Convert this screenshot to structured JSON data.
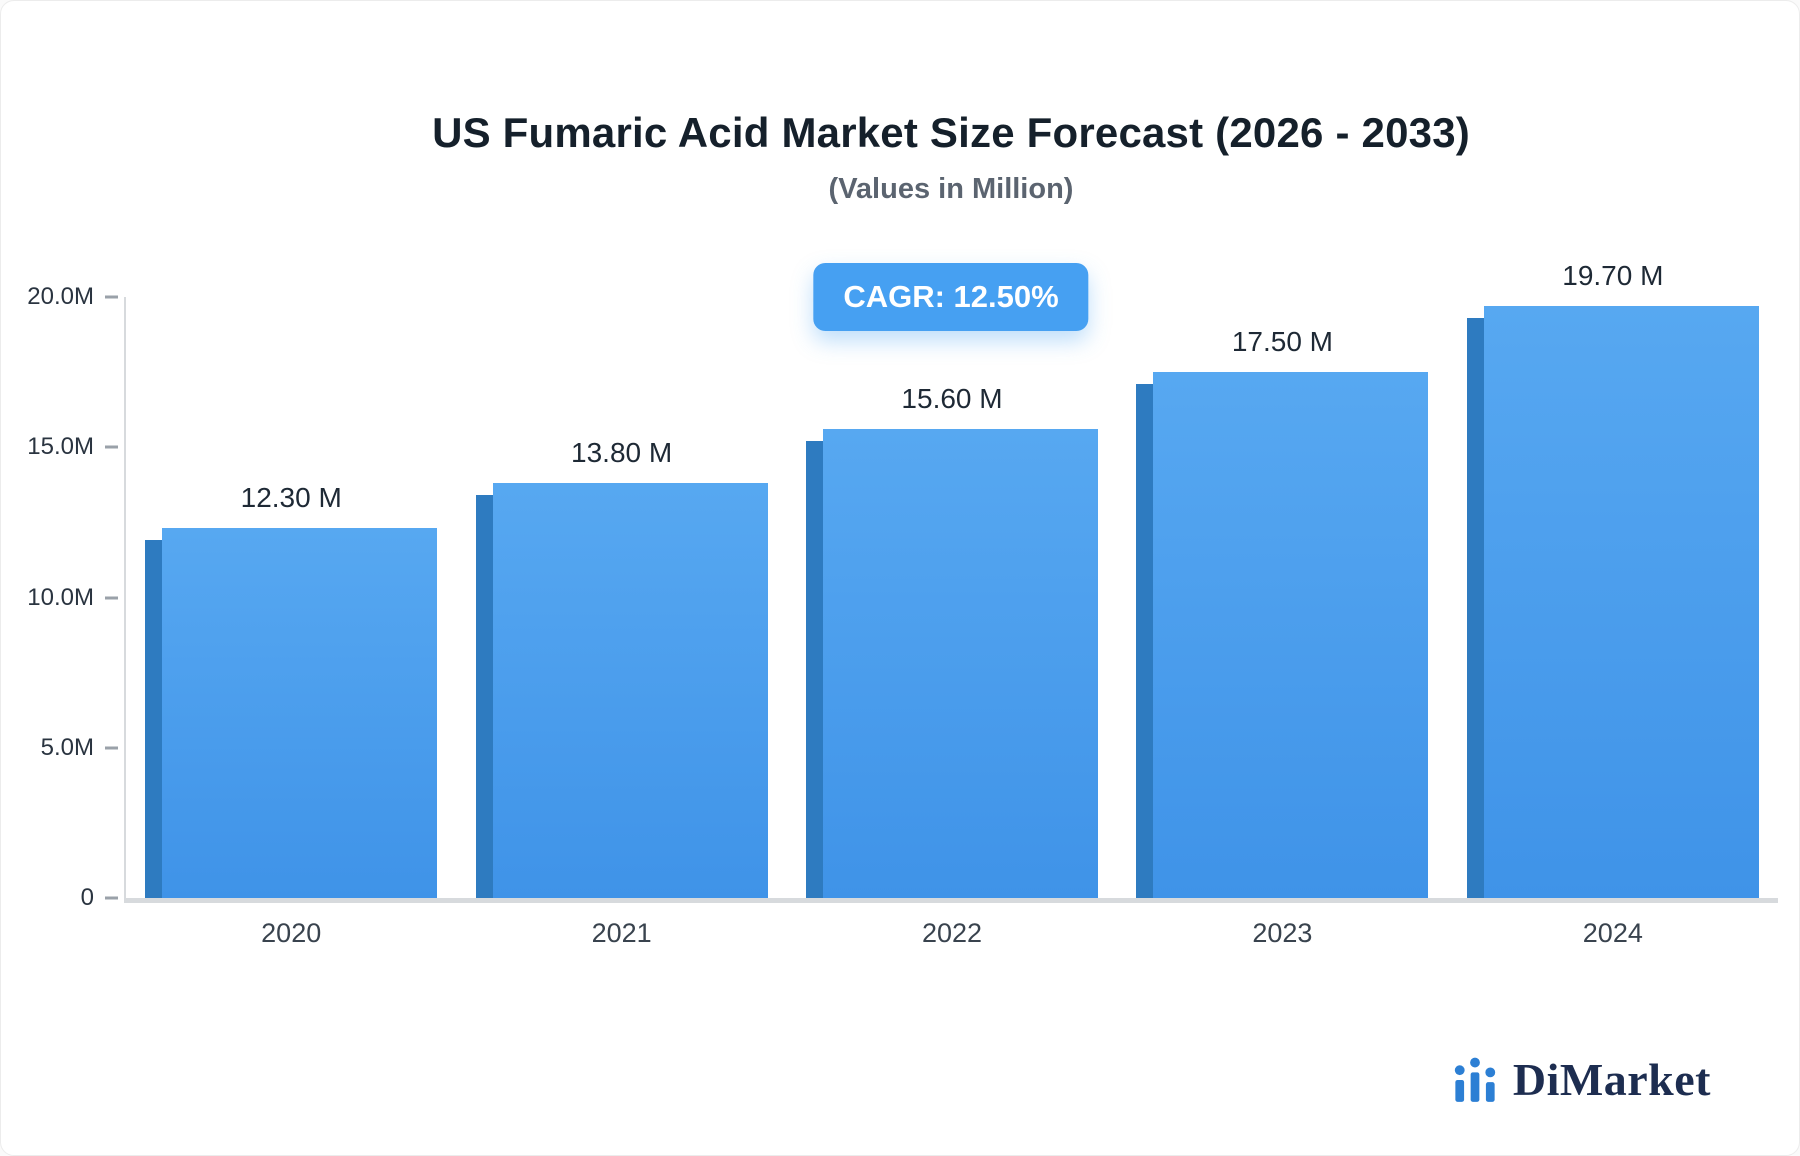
{
  "header": {
    "title": "US Fumaric Acid Market Size Forecast (2026 - 2033)",
    "subtitle": "(Values in Million)"
  },
  "badge": {
    "label": "CAGR: 12.50%"
  },
  "logo": {
    "text": "DiMarket"
  },
  "colors": {
    "bar_top": "#57A8F1",
    "bar_bottom": "#3F93E8",
    "bar_edge": "#2E7BC0",
    "badge_bg": "#46A0F2",
    "logo_icon": "#2C7FD4",
    "wordmark": "#1D2D50",
    "axis": "#D7DADD"
  },
  "chart_data": {
    "type": "bar",
    "title": "US Fumaric Acid Market Size Forecast (2026 - 2033)",
    "subtitle": "(Values in Million)",
    "annotation": "CAGR: 12.50%",
    "categories": [
      "2020",
      "2021",
      "2022",
      "2023",
      "2024"
    ],
    "values": [
      12.3,
      13.8,
      15.6,
      17.5,
      19.7
    ],
    "value_labels": [
      "12.30 M",
      "13.80 M",
      "15.60 M",
      "17.50 M",
      "19.70 M"
    ],
    "xlabel": "",
    "ylabel": "",
    "ylim": [
      0,
      20
    ],
    "yticks": [
      {
        "value": 20,
        "label": "20.0M"
      },
      {
        "value": 15,
        "label": "15.0M"
      },
      {
        "value": 10,
        "label": "10.0M"
      },
      {
        "value": 5,
        "label": "5.0M"
      },
      {
        "value": 0,
        "label": "0"
      }
    ],
    "grid": false,
    "legend_position": "none"
  }
}
